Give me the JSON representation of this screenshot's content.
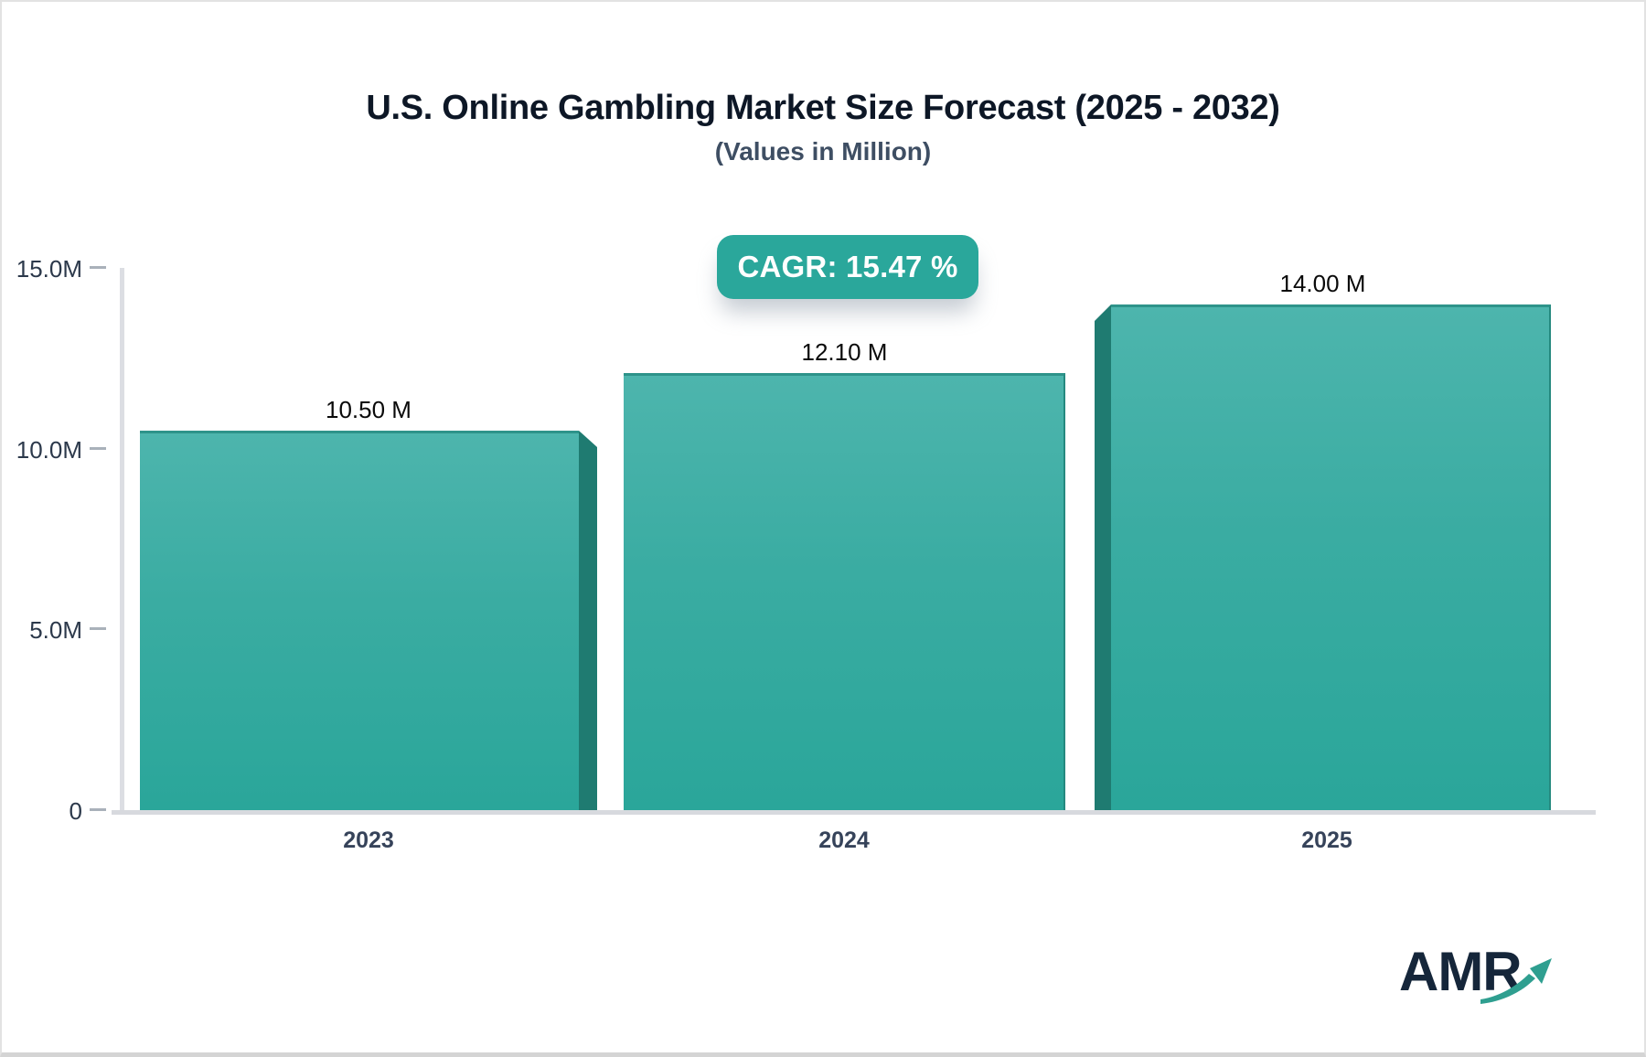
{
  "page": {
    "background": "#ffffff"
  },
  "header": {
    "title": "U.S. Online Gambling Market Size Forecast (2025 - 2032)",
    "subtitle": "(Values in Million)"
  },
  "badge": {
    "label": "CAGR: 15.47 %",
    "bg_color": "#2aa79b",
    "text_color": "#ffffff"
  },
  "chart_data": {
    "type": "bar",
    "title": "U.S. Online Gambling Market Size Forecast (2025 - 2032)",
    "subtitle": "(Values in Million)",
    "categories": [
      "2023",
      "2024",
      "2025"
    ],
    "values": [
      10.5,
      12.1,
      14.0
    ],
    "value_labels": [
      "10.50 M",
      "12.10 M",
      "14.00 M"
    ],
    "unit": "Million",
    "cagr_label": "CAGR: 15.47 %",
    "ylim": [
      0,
      15
    ],
    "yticks": [
      "15.0M",
      "10.0M",
      "5.0M",
      "0"
    ],
    "ytick_values": [
      15,
      10,
      5,
      0
    ],
    "xlabel": "",
    "ylabel": "",
    "grid": false,
    "legend": "none",
    "bar_color_top": "#4db5ad",
    "bar_color_bottom": "#2aa69a",
    "bar_side_color": "#1f7b71",
    "axis_color": "#d7d9de"
  },
  "logo": {
    "text": "AMR",
    "text_color": "#15263a",
    "arrow_color": "#2f9f90"
  }
}
